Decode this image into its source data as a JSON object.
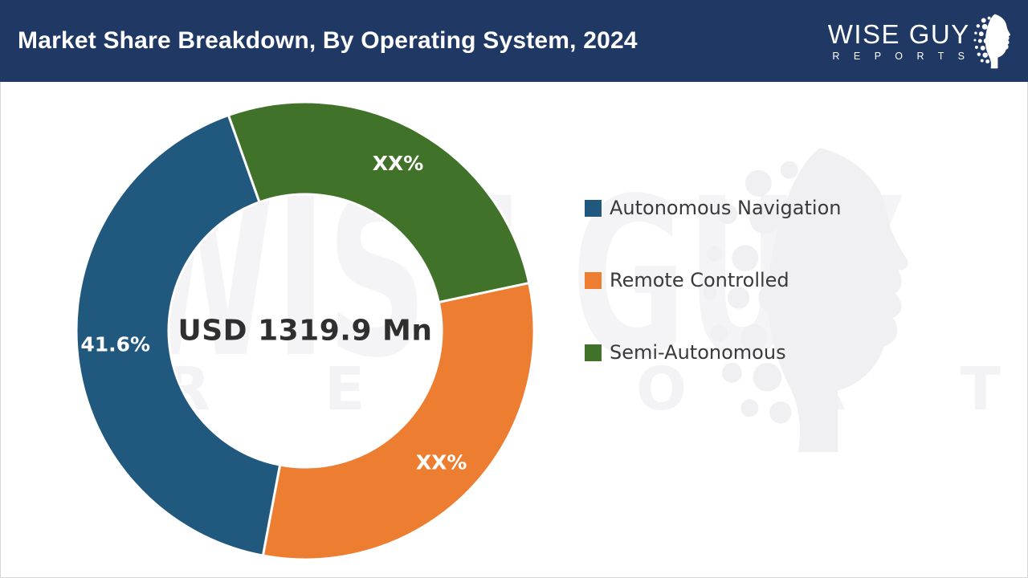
{
  "header": {
    "title": "Market Share Breakdown, By Operating System, 2024",
    "bg_color": "#1F3864",
    "brand": {
      "line1": "WISE GUY",
      "line2": "R E P O R T S"
    }
  },
  "watermark": {
    "line1": "WISE GUY",
    "line2": "R E P O R T S"
  },
  "chart_data": {
    "type": "pie",
    "subtype": "donut",
    "title": "Market Share Breakdown, By Operating System, 2024",
    "center_label": "USD 1319.9 Mn",
    "value_unit": "percent",
    "start_angle_deg_clockwise_from_top": -19.6,
    "segments": [
      {
        "name": "Semi-Autonomous",
        "value_label": "XX%",
        "share_pct_est": 27.1,
        "color": "#41722A"
      },
      {
        "name": "Remote Controlled",
        "value_label": "XX%",
        "share_pct_est": 31.3,
        "color": "#ED7D31"
      },
      {
        "name": "Autonomous Navigation",
        "value_label": "41.6%",
        "share_pct_est": 41.6,
        "color": "#21587D"
      }
    ],
    "legend_position": "right"
  },
  "legend": [
    {
      "label": "Autonomous Navigation",
      "color": "#21587D"
    },
    {
      "label": "Remote Controlled",
      "color": "#ED7D31"
    },
    {
      "label": "Semi-Autonomous",
      "color": "#41722A"
    }
  ]
}
